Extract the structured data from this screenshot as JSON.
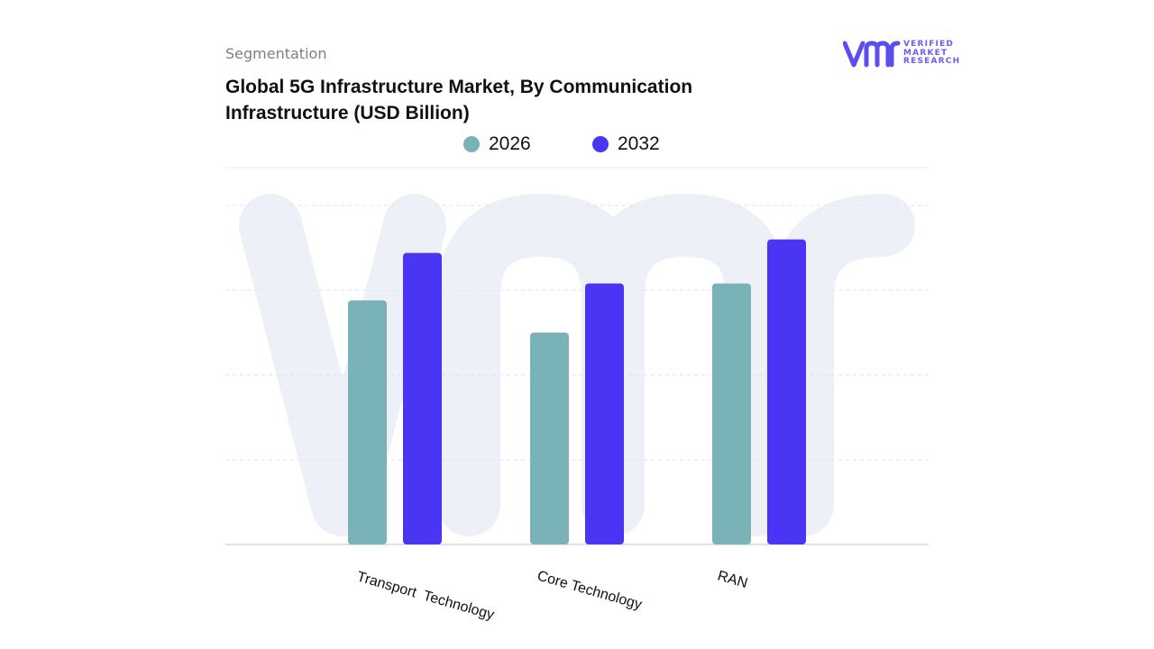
{
  "header": {
    "segmentation_label": "Segmentation",
    "title_line1": "Global 5G Infrastructure Market, By Communication",
    "title_line2": "Infrastructure (USD Billion)"
  },
  "logo": {
    "mark_text": "vmr",
    "line1": "VERIFIED",
    "line2": "MARKET",
    "line3": "RESEARCH",
    "color": "#5b4df0"
  },
  "colors": {
    "series_2026": "#7ab3b7",
    "series_2032": "#4a35f5",
    "gridline": "#e3e3e3",
    "watermark": "#eef0f7"
  },
  "chart_data": {
    "type": "bar",
    "title": "Global 5G Infrastructure Market, By Communication Infrastructure (USD Billion)",
    "xlabel": "",
    "ylabel": "",
    "categories": [
      "Transport  Technology",
      "Core Technology",
      "RAN"
    ],
    "series": [
      {
        "name": "2026",
        "values": [
          0.72,
          0.625,
          0.77
        ],
        "color": "#7ab3b7"
      },
      {
        "name": "2032",
        "values": [
          0.86,
          0.77,
          0.9
        ],
        "color": "#4a35f5"
      }
    ],
    "ylim": [
      0,
      1
    ],
    "y_tick_labels_shown": false,
    "grid": true,
    "legend": "top-center"
  }
}
